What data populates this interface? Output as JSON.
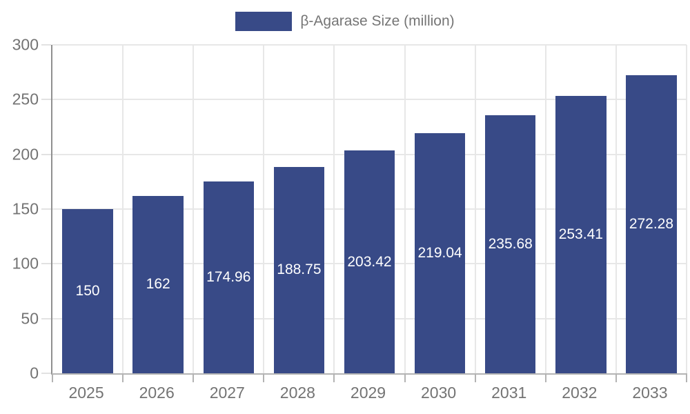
{
  "chart_data": {
    "type": "bar",
    "categories": [
      "2025",
      "2026",
      "2027",
      "2028",
      "2029",
      "2030",
      "2031",
      "2032",
      "2033"
    ],
    "values": [
      150,
      162,
      174.96,
      188.75,
      203.42,
      219.04,
      235.68,
      253.41,
      272.28
    ],
    "series_label": "β-Agarase Size (million)",
    "title": "",
    "xlabel": "",
    "ylabel": "",
    "ylim": [
      0,
      300
    ],
    "yticks": [
      0,
      50,
      100,
      150,
      200,
      250,
      300
    ],
    "grid": true,
    "legend_position": "top-center",
    "colors": {
      "bar": "#384a87",
      "bar_value_text": "#ffffff",
      "axis_text": "#737373",
      "legend_text": "#757575",
      "gridline": "#e7e7e7",
      "y_axis_line": "#8f8f8f",
      "x_axis_line": "#b3b3b3"
    }
  }
}
